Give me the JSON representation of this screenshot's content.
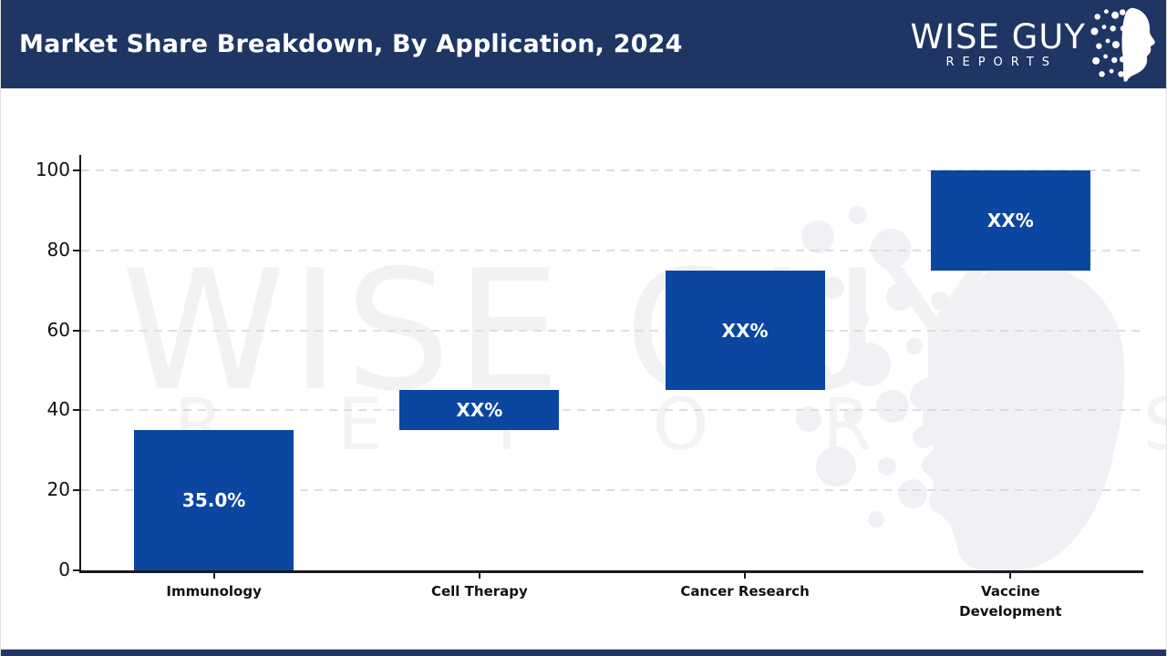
{
  "colors": {
    "header_bg": "#1f3564",
    "bar_blue": "#0b47a1",
    "axis": "#1a1a1a",
    "grid": "#dedede",
    "watermark": "#f1f2f4"
  },
  "header": {
    "title": "Market Share Breakdown, By Application, 2024",
    "logo_line1": "WISE GUY",
    "logo_line2": "REPORTS"
  },
  "watermark": {
    "line1": "WISE GUY",
    "line2": "R E P O R T S"
  },
  "chart_data": {
    "type": "bar",
    "subtype": "waterfall",
    "title": "Market Share Breakdown, By Application, 2024",
    "xlabel": "",
    "ylabel": "",
    "categories": [
      "Immunology",
      "Cell Therapy",
      "Cancer Research",
      "Vaccine Development"
    ],
    "segments": [
      {
        "category": "Immunology",
        "start": 0,
        "end": 35,
        "label": "35.0%"
      },
      {
        "category": "Cell Therapy",
        "start": 35,
        "end": 45,
        "label": "XX%"
      },
      {
        "category": "Cancer Research",
        "start": 45,
        "end": 75,
        "label": "XX%"
      },
      {
        "category": "Vaccine Development",
        "start": 75,
        "end": 100,
        "label": "XX%"
      }
    ],
    "yticks": [
      0,
      20,
      40,
      60,
      80,
      100
    ],
    "ylim": [
      0,
      100
    ],
    "grid": "horizontal-dashed",
    "legend": "none",
    "bar_color": "#0b47a1",
    "label_color": "#ffffff"
  }
}
